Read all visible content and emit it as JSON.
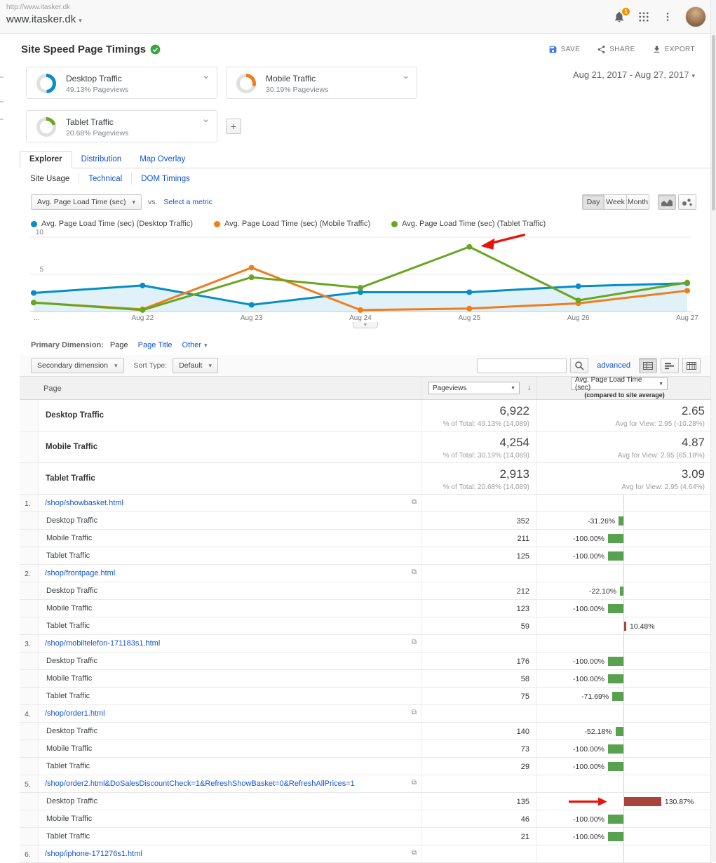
{
  "topbar": {
    "url": "http://www.itasker.dk",
    "site_name": "www.itasker.dk",
    "notification_count": "1"
  },
  "header": {
    "title": "Site Speed Page Timings",
    "save_label": "SAVE",
    "share_label": "SHARE",
    "export_label": "EXPORT"
  },
  "date_range": "Aug 21, 2017 - Aug 27, 2017",
  "segments": [
    {
      "name": "Desktop Traffic",
      "subtitle": "49.13% Pageviews",
      "color": "#058dc7",
      "pct": 49.13
    },
    {
      "name": "Mobile Traffic",
      "subtitle": "30.19% Pageviews",
      "color": "#ee7d1e",
      "pct": 30.19
    },
    {
      "name": "Tablet Traffic",
      "subtitle": "20.68% Pageviews",
      "color": "#66a621",
      "pct": 20.68
    }
  ],
  "add_segment_label": "+",
  "tabs": {
    "explorer": "Explorer",
    "distribution": "Distribution",
    "map_overlay": "Map Overlay"
  },
  "subtabs": {
    "site_usage": "Site Usage",
    "technical": "Technical",
    "dom_timings": "DOM Timings"
  },
  "metric_bar": {
    "metric_select": "Avg. Page Load Time (sec)",
    "vs_label": "vs.",
    "select_metric": "Select a metric",
    "day": "Day",
    "week": "Week",
    "month": "Month"
  },
  "chart_data": {
    "type": "line",
    "x": [
      "...",
      "Aug 22",
      "Aug 23",
      "Aug 24",
      "Aug 25",
      "Aug 26",
      "Aug 27"
    ],
    "ylim": [
      0,
      10
    ],
    "yticks": [
      5,
      10
    ],
    "series": [
      {
        "name": "Avg. Page Load Time (sec) (Desktop Traffic)",
        "color": "#058dc7",
        "values": [
          2.5,
          3.5,
          0.9,
          2.6,
          2.6,
          3.4,
          3.8
        ],
        "area": true
      },
      {
        "name": "Avg. Page Load Time (sec) (Mobile Traffic)",
        "color": "#ee7d1e",
        "values": [
          1.2,
          0.3,
          5.9,
          0.2,
          0.4,
          1.1,
          2.8
        ]
      },
      {
        "name": "Avg. Page Load Time (sec) (Tablet Traffic)",
        "color": "#66a621",
        "values": [
          1.2,
          0.2,
          4.6,
          3.2,
          8.7,
          1.5,
          3.9
        ]
      }
    ],
    "annotation": "red arrow pointing at tablet traffic peak on Aug 25"
  },
  "primary_dimension": {
    "label": "Primary Dimension:",
    "page": "Page",
    "page_title": "Page Title",
    "other": "Other"
  },
  "toolbar": {
    "secondary_dimension": "Secondary dimension",
    "sort_type_label": "Sort Type:",
    "sort_type_value": "Default",
    "search_value": "",
    "advanced": "advanced"
  },
  "table": {
    "page_header": "Page",
    "pageviews_header": "Pageviews",
    "metric_header": "Avg. Page Load Time (sec)",
    "metric_header_sub": "(compared to site average)",
    "bar_colors": {
      "positive": "#a8433b",
      "negative": "#58a14e"
    },
    "summary_rows": [
      {
        "label": "Desktop Traffic",
        "pageviews": "6,922",
        "pageviews_sub": "% of Total: 49.13% (14,089)",
        "metric": "2.65",
        "metric_sub": "Avg for View: 2.95 (-10.28%)"
      },
      {
        "label": "Mobile Traffic",
        "pageviews": "4,254",
        "pageviews_sub": "% of Total: 30.19% (14,089)",
        "metric": "4.87",
        "metric_sub": "Avg for View: 2.95 (65.18%)"
      },
      {
        "label": "Tablet Traffic",
        "pageviews": "2,913",
        "pageviews_sub": "% of Total: 20.68% (14,089)",
        "metric": "3.09",
        "metric_sub": "Avg for View: 2.95 (4.64%)"
      }
    ],
    "rows": [
      {
        "index": "1.",
        "page": "/shop/showbasket.html",
        "entries": [
          {
            "label": "Desktop Traffic",
            "pageviews": "352",
            "pct": -31.26,
            "pct_label": "-31.26%"
          },
          {
            "label": "Mobile Traffic",
            "pageviews": "211",
            "pct": -100.0,
            "pct_label": "-100.00%"
          },
          {
            "label": "Tablet Traffic",
            "pageviews": "125",
            "pct": -100.0,
            "pct_label": "-100.00%"
          }
        ]
      },
      {
        "index": "2.",
        "page": "/shop/frontpage.html",
        "entries": [
          {
            "label": "Desktop Traffic",
            "pageviews": "212",
            "pct": -22.1,
            "pct_label": "-22.10%"
          },
          {
            "label": "Mobile Traffic",
            "pageviews": "123",
            "pct": -100.0,
            "pct_label": "-100.00%"
          },
          {
            "label": "Tablet Traffic",
            "pageviews": "59",
            "pct": 10.48,
            "pct_label": "10.48%"
          }
        ]
      },
      {
        "index": "3.",
        "page": "/shop/mobiltelefon-171183s1.html",
        "entries": [
          {
            "label": "Desktop Traffic",
            "pageviews": "176",
            "pct": -100.0,
            "pct_label": "-100.00%"
          },
          {
            "label": "Mobile Traffic",
            "pageviews": "58",
            "pct": -100.0,
            "pct_label": "-100.00%"
          },
          {
            "label": "Tablet Traffic",
            "pageviews": "75",
            "pct": -71.69,
            "pct_label": "-71.69%"
          }
        ]
      },
      {
        "index": "4.",
        "page": "/shop/order1.html",
        "entries": [
          {
            "label": "Desktop Traffic",
            "pageviews": "140",
            "pct": -52.18,
            "pct_label": "-52.18%"
          },
          {
            "label": "Mobile Traffic",
            "pageviews": "73",
            "pct": -100.0,
            "pct_label": "-100.00%"
          },
          {
            "label": "Tablet Traffic",
            "pageviews": "29",
            "pct": -100.0,
            "pct_label": "-100.00%"
          }
        ]
      },
      {
        "index": "5.",
        "page": "/shop/order2.html&DoSalesDiscountCheck=1&RefreshShowBasket=0&RefreshAllPrices=1",
        "entries": [
          {
            "label": "Desktop Traffic",
            "pageviews": "135",
            "pct": 130.87,
            "pct_label": "130.87%",
            "arrow": true
          },
          {
            "label": "Mobile Traffic",
            "pageviews": "46",
            "pct": -100.0,
            "pct_label": "-100.00%"
          },
          {
            "label": "Tablet Traffic",
            "pageviews": "21",
            "pct": -100.0,
            "pct_label": "-100.00%"
          }
        ]
      },
      {
        "index": "6.",
        "page": "/shop/iphone-171276s1.html",
        "entries": []
      }
    ]
  }
}
